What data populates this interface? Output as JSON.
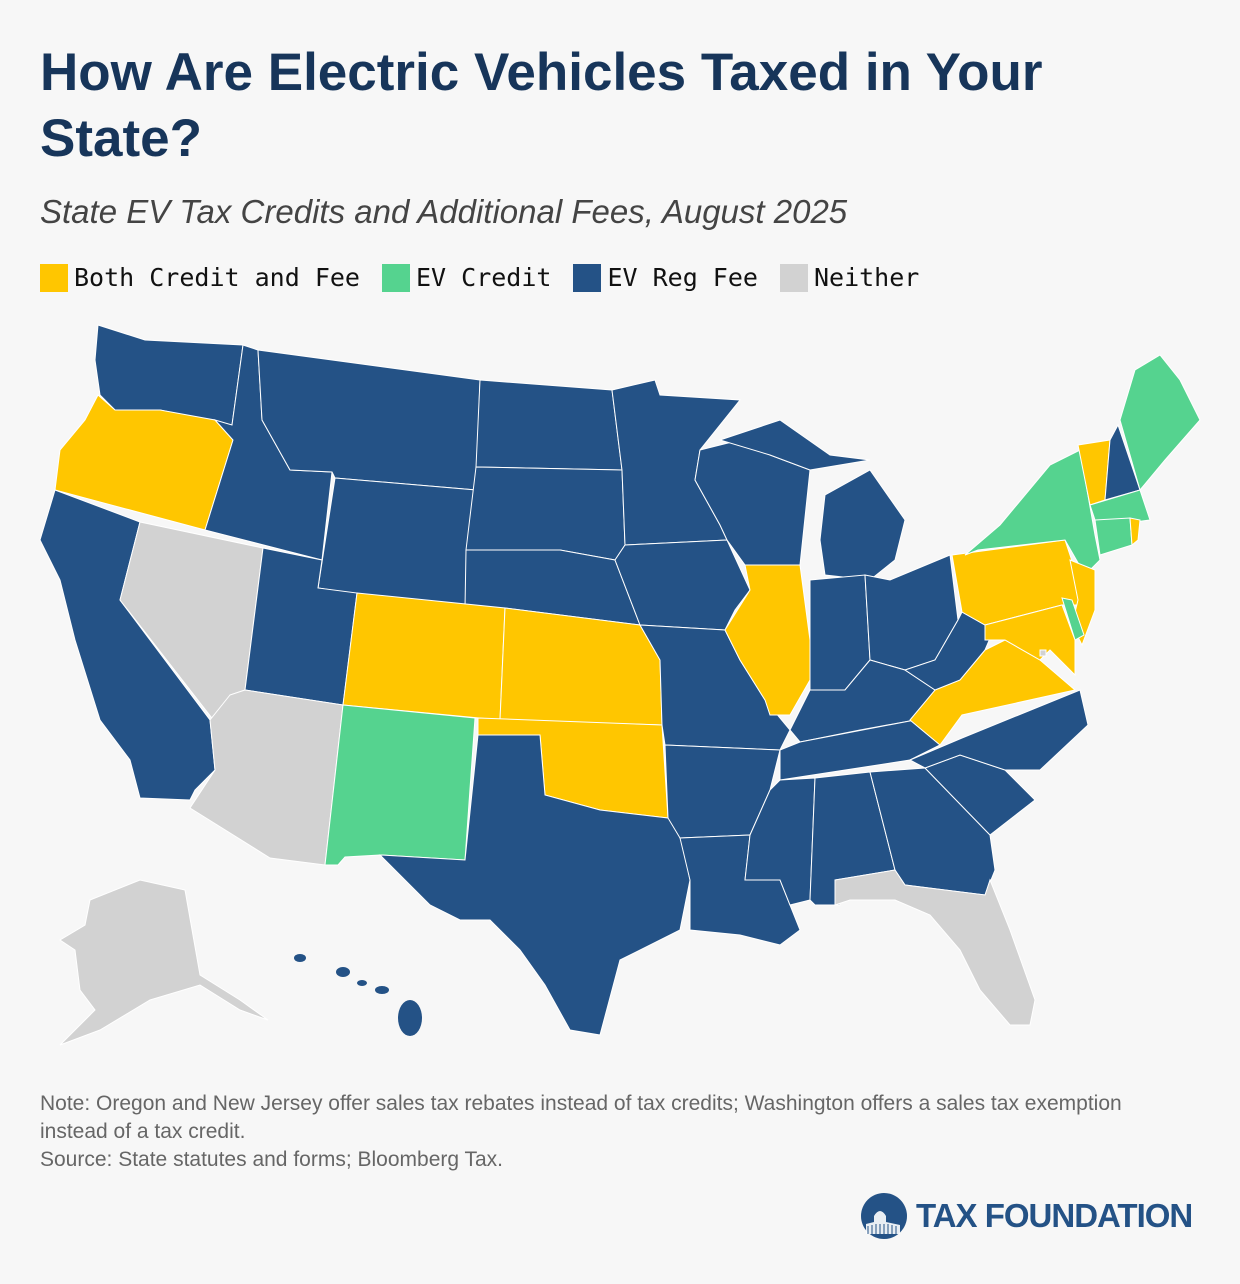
{
  "title": "How Are Electric Vehicles Taxed in Your State?",
  "subtitle": "State EV Tax Credits and Additional Fees, August 2025",
  "legend": [
    {
      "key": "both",
      "label": "Both Credit and Fee",
      "color": "#FFC600"
    },
    {
      "key": "credit",
      "label": "EV Credit",
      "color": "#55D38F"
    },
    {
      "key": "fee",
      "label": "EV Reg Fee",
      "color": "#245286"
    },
    {
      "key": "neither",
      "label": "Neither",
      "color": "#D2D2D2"
    }
  ],
  "states": {
    "OR": "both",
    "CO": "both",
    "KS": "both",
    "OK": "both",
    "IL": "both",
    "PA": "both",
    "NJ": "both",
    "MD": "both",
    "VA": "both",
    "VT": "both",
    "RI": "both",
    "NM": "credit",
    "NY": "credit",
    "ME": "credit",
    "MA": "credit",
    "CT": "credit",
    "DE": "credit",
    "WA": "fee",
    "CA": "fee",
    "ID": "fee",
    "MT": "fee",
    "WY": "fee",
    "UT": "fee",
    "ND": "fee",
    "SD": "fee",
    "NE": "fee",
    "MN": "fee",
    "IA": "fee",
    "MO": "fee",
    "AR": "fee",
    "LA": "fee",
    "TX": "fee",
    "WI": "fee",
    "MI": "fee",
    "IN": "fee",
    "OH": "fee",
    "KY": "fee",
    "TN": "fee",
    "MS": "fee",
    "AL": "fee",
    "GA": "fee",
    "SC": "fee",
    "NC": "fee",
    "WV": "fee",
    "NH": "fee",
    "HI": "fee",
    "NV": "neither",
    "AZ": "neither",
    "FL": "neither",
    "AK": "neither",
    "DC": "neither"
  },
  "note": "Note: Oregon and New Jersey offer sales tax rebates instead of tax credits; Washington offers a sales tax exemption instead of a tax credit.",
  "source": "Source: State statutes and forms; Bloomberg Tax.",
  "logo": "TAX FOUNDATION"
}
